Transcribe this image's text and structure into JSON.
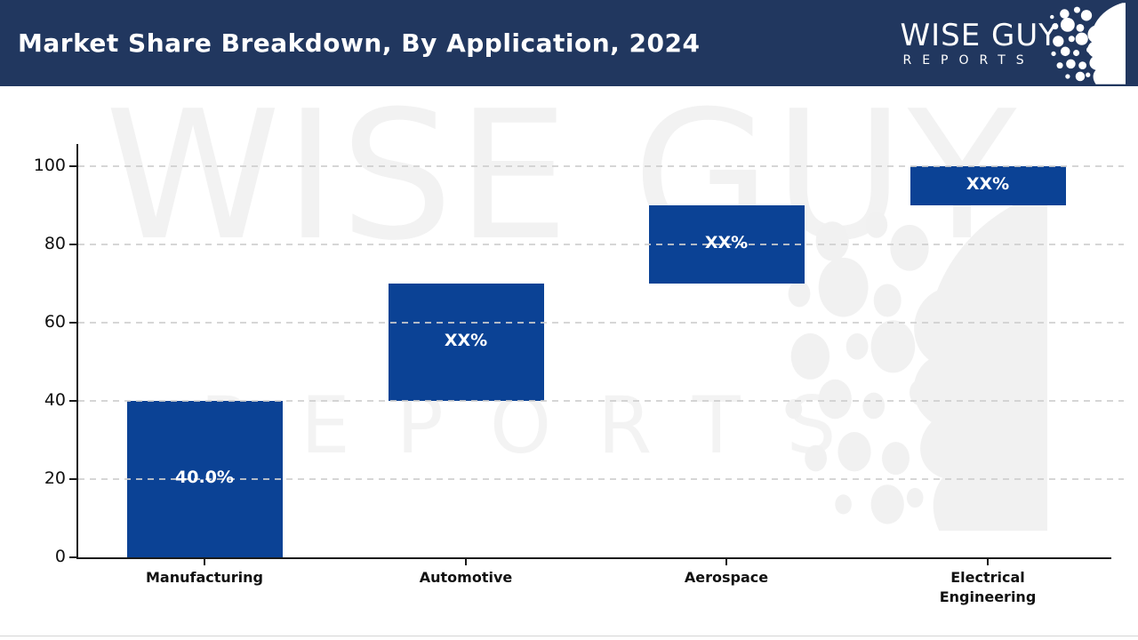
{
  "header": {
    "title": "Market Share Breakdown, By Application, 2024",
    "bg_color": "#21375f",
    "logo_line1": "WISE GUY",
    "logo_line2": "REPORTS"
  },
  "watermark": {
    "line1": "WISE GUY",
    "line2": "REPORTS"
  },
  "chart_data": {
    "type": "bar",
    "subtype": "waterfall",
    "title": "Market Share Breakdown, By Application, 2024",
    "categories": [
      "Manufacturing",
      "Automotive",
      "Aerospace",
      "Electrical Engineering"
    ],
    "segments": [
      {
        "category": "Manufacturing",
        "start": 0,
        "end": 40,
        "label": "40.0%"
      },
      {
        "category": "Automotive",
        "start": 40,
        "end": 70,
        "label": "XX%"
      },
      {
        "category": "Aerospace",
        "start": 70,
        "end": 90,
        "label": "XX%"
      },
      {
        "category": "Electrical Engineering",
        "start": 90,
        "end": 100,
        "label": "XX%"
      }
    ],
    "y_ticks": [
      0,
      20,
      40,
      60,
      80,
      100
    ],
    "ylim": [
      0,
      100
    ],
    "xlabel": "",
    "ylabel": "",
    "bar_color": "#0b4295",
    "grid": "horizontal-dashed",
    "legend": "none"
  }
}
